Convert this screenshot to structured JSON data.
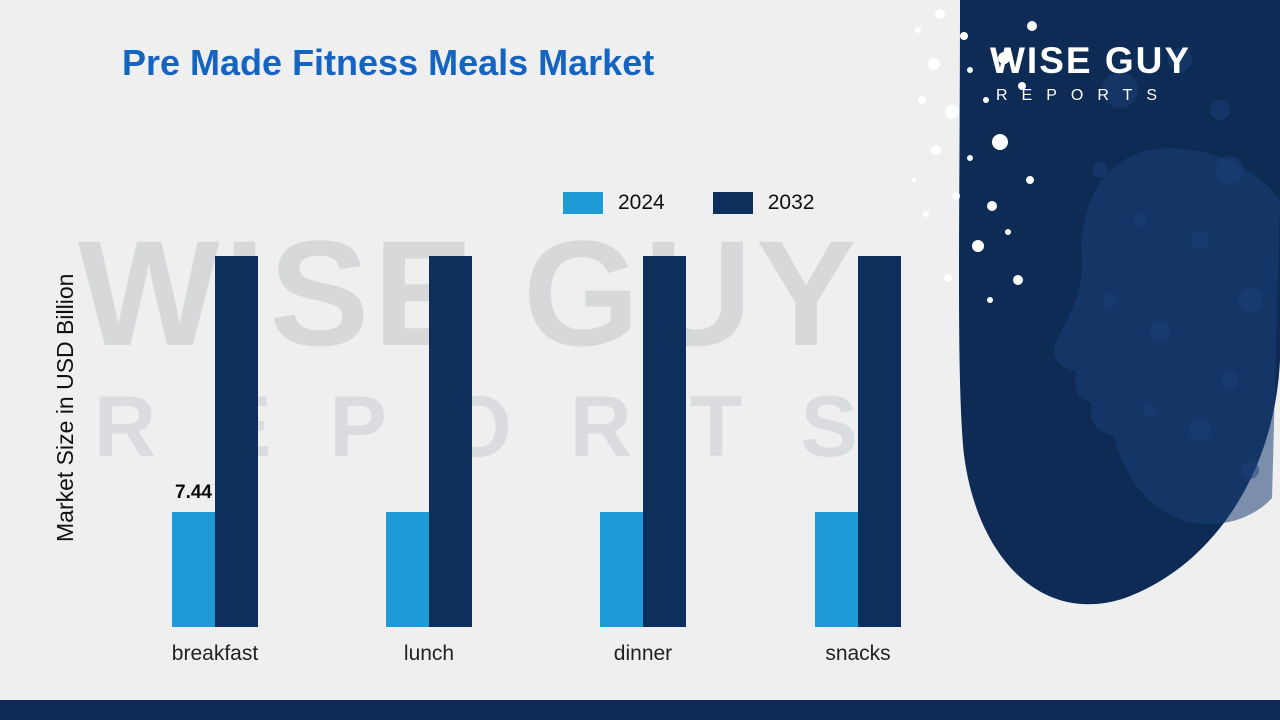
{
  "title": "Pre Made Fitness Meals Market",
  "brand": {
    "name_line1": "WISE GUY",
    "name_line2": "REPORTS"
  },
  "watermark": {
    "line1": "WISE GUY",
    "line2": "REPORTS"
  },
  "chart_data": {
    "type": "bar",
    "title": "Pre Made Fitness Meals Market",
    "xlabel": "",
    "ylabel": "Market Size in USD Billion",
    "categories": [
      "breakfast",
      "lunch",
      "dinner",
      "snacks"
    ],
    "series": [
      {
        "name": "2024",
        "color": "#1E9BD7",
        "values": [
          7.44,
          7.44,
          7.44,
          7.44
        ]
      },
      {
        "name": "2032",
        "color": "#0E2E5C",
        "values": [
          24,
          24,
          24,
          24
        ]
      }
    ],
    "ylim": [
      0,
      24
    ],
    "grid": false,
    "legend_position": "top",
    "value_labels": [
      {
        "series": "2024",
        "category": "breakfast",
        "text": "7.44"
      }
    ]
  },
  "colors": {
    "title": "#1565C0",
    "navy": "#0D2B55",
    "light_blue": "#1E9BD7",
    "background": "#EFEFF0",
    "watermark": "#D9D9D9"
  }
}
